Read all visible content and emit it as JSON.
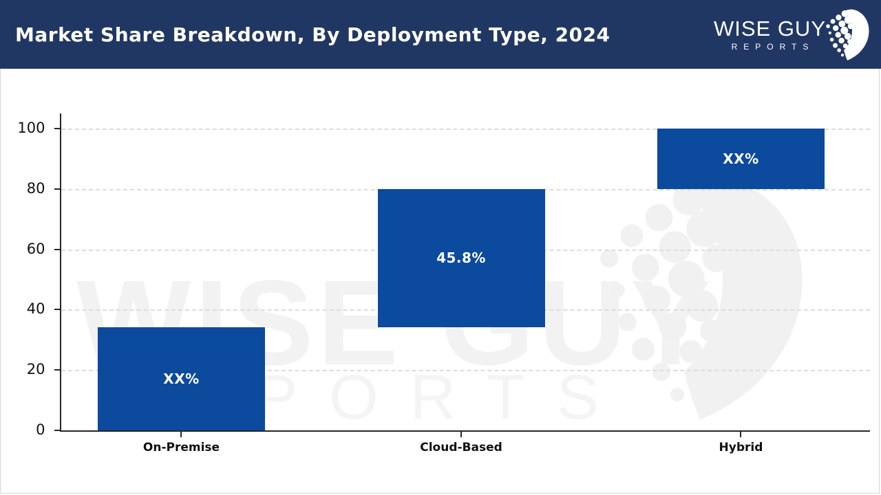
{
  "header": {
    "title": "Market Share Breakdown, By Deployment Type, 2024",
    "logo": {
      "wordmark": "WISE GUY",
      "subtext": "REPORTS"
    }
  },
  "watermark": {
    "wordmark": "WISE GUY",
    "subtext": "REPORTS"
  },
  "colors": {
    "header_bg": "#213763",
    "bar": "#0b4a9d",
    "gridline": "#dcdcdc",
    "axis": "#262626",
    "watermark": "#f2f2f2",
    "bar_label": "#ffffff"
  },
  "chart_data": {
    "type": "bar",
    "subtype": "floating-stacked-percentage",
    "title": "Market Share Breakdown, By Deployment Type, 2024",
    "categories": [
      "On-Premise",
      "Cloud-Based",
      "Hybrid"
    ],
    "series": [
      {
        "name": "Market Share",
        "segments": [
          {
            "category": "On-Premise",
            "base": 0,
            "value": 34.2,
            "label": "XX%"
          },
          {
            "category": "Cloud-Based",
            "base": 34.2,
            "value": 45.8,
            "label": "45.8%"
          },
          {
            "category": "Hybrid",
            "base": 80,
            "value": 20,
            "label": "XX%"
          }
        ]
      }
    ],
    "yticks": [
      0,
      20,
      40,
      60,
      80,
      100
    ],
    "ylim": [
      0,
      105
    ],
    "xlabel": "",
    "ylabel": "",
    "grid": "dashed-horizontal",
    "legend": "none"
  }
}
